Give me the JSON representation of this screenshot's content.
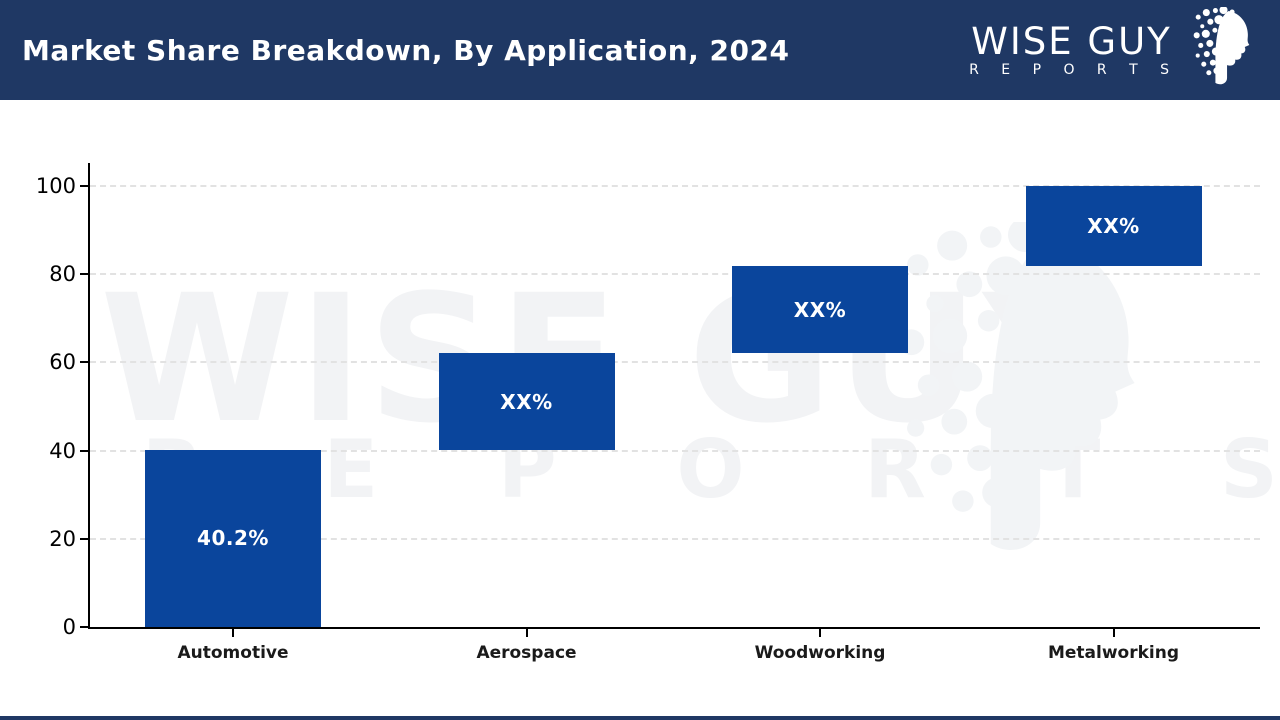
{
  "header": {
    "title": "Market Share Breakdown, By Application, 2024",
    "logo": {
      "line1": "WISE GUY",
      "line2": "R E P O R T S"
    }
  },
  "watermark": {
    "line1": "WISE GUY",
    "line2": "R E P O R T S"
  },
  "colors": {
    "header_bg": "#1f3864",
    "footer_bg": "#1f3864",
    "bar": "#0a459c",
    "grid": "#e2e2e2",
    "axis": "#000000",
    "bar_label": "#ffffff",
    "watermark": "#f2f3f5"
  },
  "chart_data": {
    "type": "bar",
    "subtype": "waterfall-floating-bars",
    "title": "Market Share Breakdown, By Application, 2024",
    "categories": [
      "Automotive",
      "Aerospace",
      "Woodworking",
      "Metalworking"
    ],
    "segments": [
      {
        "category": "Automotive",
        "start": 0,
        "end": 40.2,
        "label": "40.2%"
      },
      {
        "category": "Aerospace",
        "start": 40.2,
        "end": 62.0,
        "label": "XX%"
      },
      {
        "category": "Woodworking",
        "start": 62.0,
        "end": 81.8,
        "label": "XX%"
      },
      {
        "category": "Metalworking",
        "start": 81.8,
        "end": 100,
        "label": "XX%"
      }
    ],
    "yticks": [
      0,
      20,
      40,
      60,
      80,
      100
    ],
    "ylim": [
      0,
      105
    ],
    "xlabel": "",
    "ylabel": "",
    "grid": "horizontal-dashed",
    "legend": "none"
  }
}
